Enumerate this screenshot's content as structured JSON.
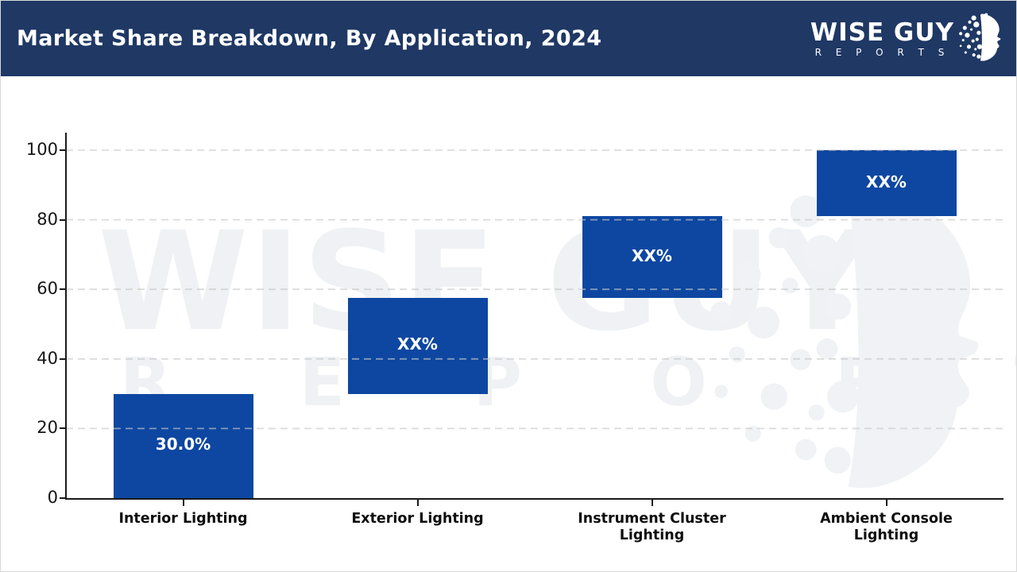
{
  "header": {
    "title": "Market Share Breakdown, By Application, 2024",
    "brand": {
      "wordmark": "WISE GUY",
      "reports": "R E P O R T S"
    },
    "bg_color": "#1f3864"
  },
  "watermark": {
    "line1": "WISE GUY",
    "line2": "R E P O R T S"
  },
  "chart_data": {
    "type": "bar",
    "subtype": "waterfall",
    "title": "Market Share Breakdown, By Application, 2024",
    "categories": [
      "Interior Lighting",
      "Exterior Lighting",
      "Instrument Cluster Lighting",
      "Ambient Console Lighting"
    ],
    "segments": [
      {
        "category": "Interior Lighting",
        "start": 0,
        "end": 30,
        "label": "30.0%"
      },
      {
        "category": "Exterior Lighting",
        "start": 30,
        "end": 57.5,
        "label": "XX%"
      },
      {
        "category": "Instrument Cluster Lighting",
        "start": 57.5,
        "end": 81,
        "label": "XX%"
      },
      {
        "category": "Ambient Console Lighting",
        "start": 81,
        "end": 100,
        "label": "XX%"
      }
    ],
    "yticks": [
      0,
      20,
      40,
      60,
      80,
      100
    ],
    "ylim": [
      0,
      105
    ],
    "xlabel": "",
    "ylabel": "",
    "grid": true,
    "grid_style": "dashed",
    "bar_color": "#0d47a1",
    "label_color": "#ffffff",
    "legend": null
  }
}
